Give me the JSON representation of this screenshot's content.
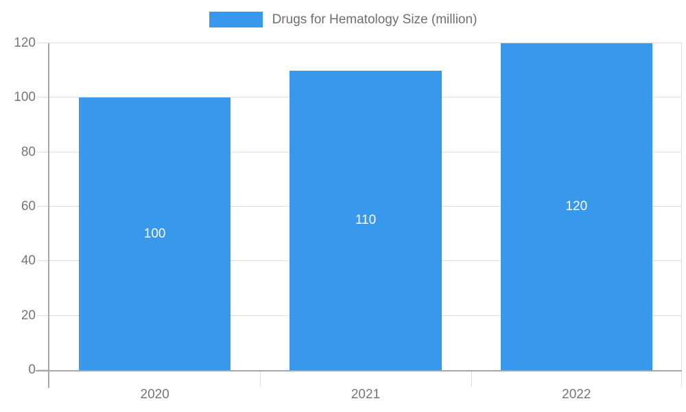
{
  "chart_data": {
    "type": "bar",
    "title": "Drugs for Hematology Size (million)",
    "categories": [
      "2020",
      "2021",
      "2022"
    ],
    "values": [
      100,
      110,
      120
    ],
    "data_labels": [
      "100",
      "110",
      "120"
    ],
    "yticks": [
      0,
      20,
      40,
      60,
      80,
      100,
      120
    ],
    "ylim": [
      0,
      120
    ],
    "xlabel": "",
    "ylabel": "",
    "grid": true,
    "legend_position": "top",
    "colors": {
      "bar": "#3898ec",
      "data_label": "#ffffff",
      "axis_text": "#757575",
      "grid_line": "#dcdcdc",
      "axis_line": "#a6a6a6",
      "background": "#ffffff"
    }
  }
}
